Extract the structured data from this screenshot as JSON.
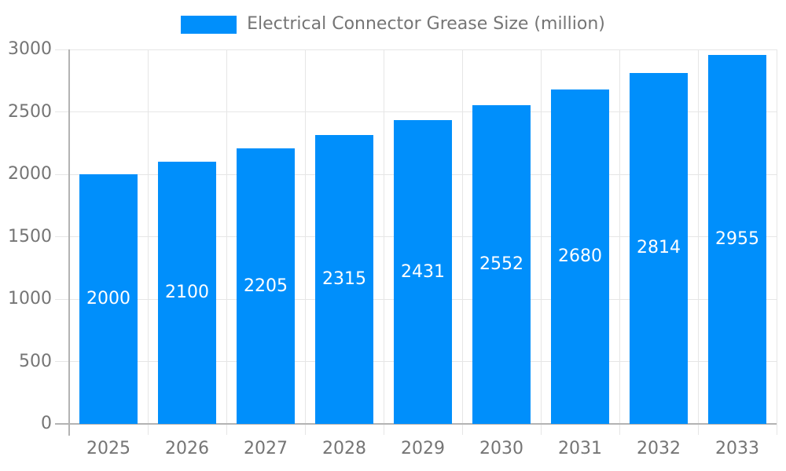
{
  "chart_data": {
    "type": "bar",
    "title": "Electrical Connector Grease Size (million)",
    "categories": [
      "2025",
      "2026",
      "2027",
      "2028",
      "2029",
      "2030",
      "2031",
      "2032",
      "2033"
    ],
    "values": [
      2000,
      2100,
      2205,
      2315,
      2431,
      2552,
      2680,
      2814,
      2955
    ],
    "series": [
      {
        "name": "Electrical Connector Grease Size (million)",
        "values": [
          2000,
          2100,
          2205,
          2315,
          2431,
          2552,
          2680,
          2814,
          2955
        ]
      }
    ],
    "xlabel": "",
    "ylabel": "",
    "ylim": [
      0,
      3000
    ],
    "yticks": [
      0,
      500,
      1000,
      1500,
      2000,
      2500,
      3000
    ],
    "grid": true,
    "legend_position": "top-center",
    "data_labels": "inside-center",
    "colors": {
      "bar": "#008FFB",
      "bar_label_text": "#ffffff",
      "axis_text": "#757575",
      "gridline": "#e6e6e6",
      "axis_line": "#b3b3b3"
    }
  }
}
